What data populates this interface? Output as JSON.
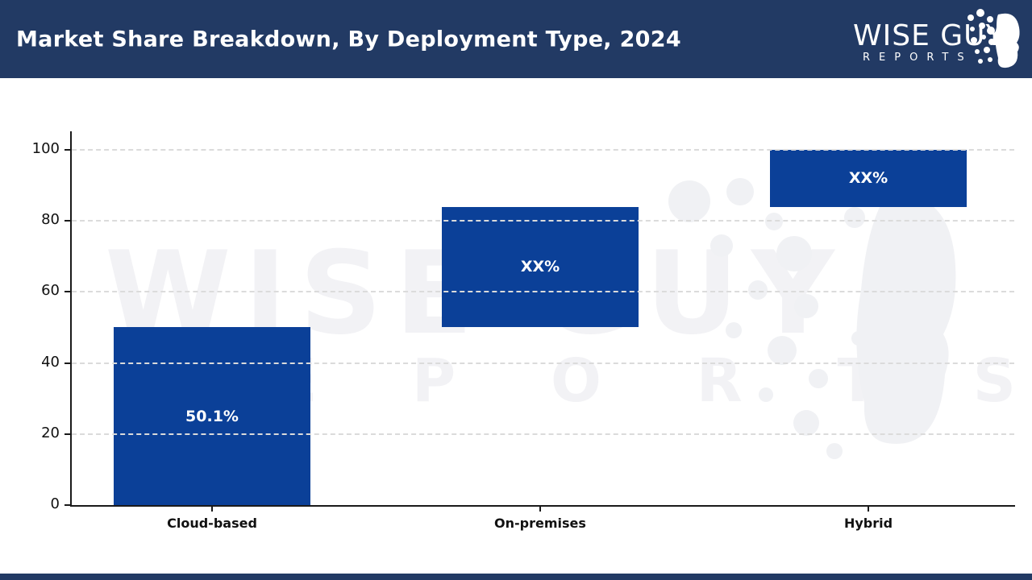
{
  "header": {
    "title": "Market Share Breakdown, By Deployment Type, 2024",
    "logo": {
      "line1": "WISE GUY",
      "line2": "REPORTS"
    }
  },
  "watermark": {
    "line1": "WISE GUY",
    "line2": "REPORTS"
  },
  "colors": {
    "header_bg": "#223A64",
    "footer_bg": "#223A64",
    "bar": "#0B4098",
    "bar_label": "#FFFFFF",
    "gridline": "#DBDBDB",
    "axis": "#1A1A1A",
    "title_text": "#FFFFFF",
    "watermark": "#F2F2F5"
  },
  "icons": {
    "logo_face": "dotted-face-profile-icon"
  },
  "chart_data": {
    "type": "bar",
    "subtype": "floating-waterfall",
    "title": "Market Share Breakdown, By Deployment Type, 2024",
    "categories": [
      "Cloud-based",
      "On-premises",
      "Hybrid"
    ],
    "bars": [
      {
        "category": "Cloud-based",
        "start": 0,
        "end": 50.1,
        "value_label": "50.1%"
      },
      {
        "category": "On-premises",
        "start": 50.1,
        "end": 84,
        "value_label": "XX%"
      },
      {
        "category": "Hybrid",
        "start": 84,
        "end": 100,
        "value_label": "XX%"
      }
    ],
    "ylabel": "",
    "xlabel": "",
    "ylim": [
      0,
      100
    ],
    "yticks": [
      0,
      20,
      40,
      60,
      80,
      100
    ],
    "grid": "horizontal-dashed",
    "legend": "none",
    "bar_color": "#0B4098"
  }
}
